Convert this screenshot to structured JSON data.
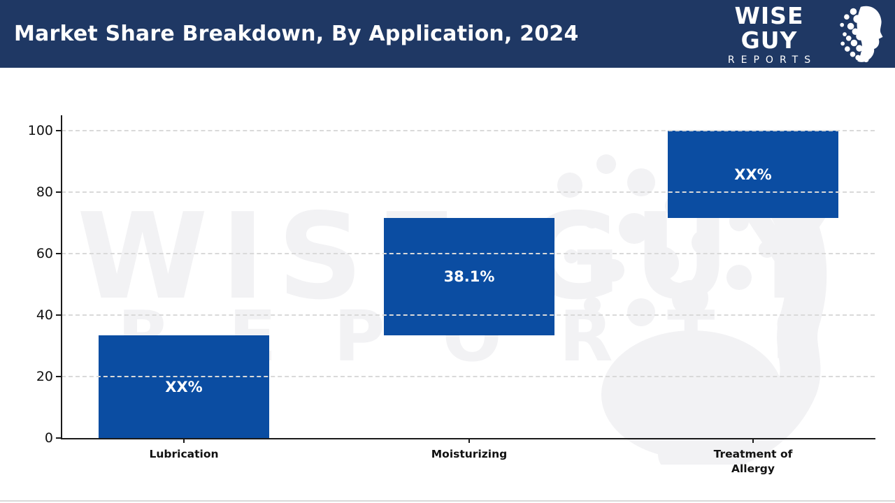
{
  "header": {
    "title": "Market Share Breakdown, By Application, 2024",
    "logo": {
      "line1": "WISE GUY",
      "line2": "REPORTS"
    }
  },
  "watermark": {
    "line1": "WISE GUY",
    "line2": "REPORTS"
  },
  "chart_data": {
    "type": "bar",
    "variant": "floating-waterfall",
    "title": "Market Share Breakdown, By Application, 2024",
    "categories": [
      "Lubrication",
      "Moisturizing",
      "Treatment of\nAllergy"
    ],
    "bars": [
      {
        "category": "Lubrication",
        "start": 0,
        "end": 33.4,
        "label": "XX%"
      },
      {
        "category": "Moisturizing",
        "start": 33.4,
        "end": 71.5,
        "label": "38.1%"
      },
      {
        "category": "Treatment of\nAllergy",
        "start": 71.5,
        "end": 100,
        "label": "XX%"
      }
    ],
    "xlabel": "",
    "ylabel": "",
    "yticks": [
      0,
      20,
      40,
      60,
      80,
      100
    ],
    "ylim": [
      0,
      105
    ],
    "grid": "horizontal-dashed-above-bars",
    "legend": "none"
  },
  "colors": {
    "header_bg": "#1f3864",
    "bar": "#0b4da2",
    "grid": "#d9d9d9",
    "axis": "#1a1a1a",
    "bar_label": "#ffffff",
    "tick_label": "#111111",
    "watermark": "#f2f2f4",
    "page_bg": "#ffffff"
  }
}
